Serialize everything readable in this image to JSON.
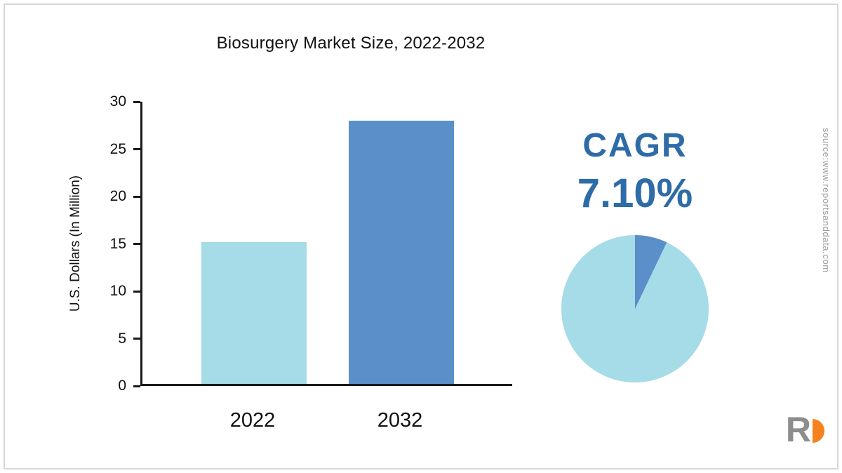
{
  "title": "Biosurgery Market Size, 2022-2032",
  "colors": {
    "accent_blue": "#2e6ca8",
    "bar_light": "#a6dbe8",
    "bar_dark": "#5b8fc9",
    "axis_black": "#1a1a1a",
    "logo_gray": "#8d8d8d",
    "logo_orange": "#f5821f"
  },
  "chart_data": [
    {
      "type": "bar",
      "title": "Biosurgery Market Size, 2022-2032",
      "categories": [
        "2022",
        "2032"
      ],
      "values": [
        15,
        27.8
      ],
      "xlabel": "",
      "ylabel": "U.S. Dollars (In Million)",
      "ylim": [
        0,
        30
      ],
      "yticks": [
        0,
        5,
        10,
        15,
        20,
        25,
        30
      ],
      "colors": [
        "#a6dbe8",
        "#5b8fc9"
      ],
      "grid": false,
      "legend": "none"
    },
    {
      "type": "pie",
      "title": "CAGR 7.10%",
      "labels": [
        "CAGR portion",
        "remainder"
      ],
      "values": [
        7.1,
        92.9
      ],
      "colors": [
        "#5b8fc9",
        "#a6dbe8"
      ],
      "start_angle_deg": 0,
      "legend": "none"
    }
  ],
  "cagr": {
    "label": "CAGR",
    "value": "7.10%"
  },
  "source": {
    "text": "source:www.reportsanddata.com"
  },
  "logo": {
    "letter": "R"
  }
}
